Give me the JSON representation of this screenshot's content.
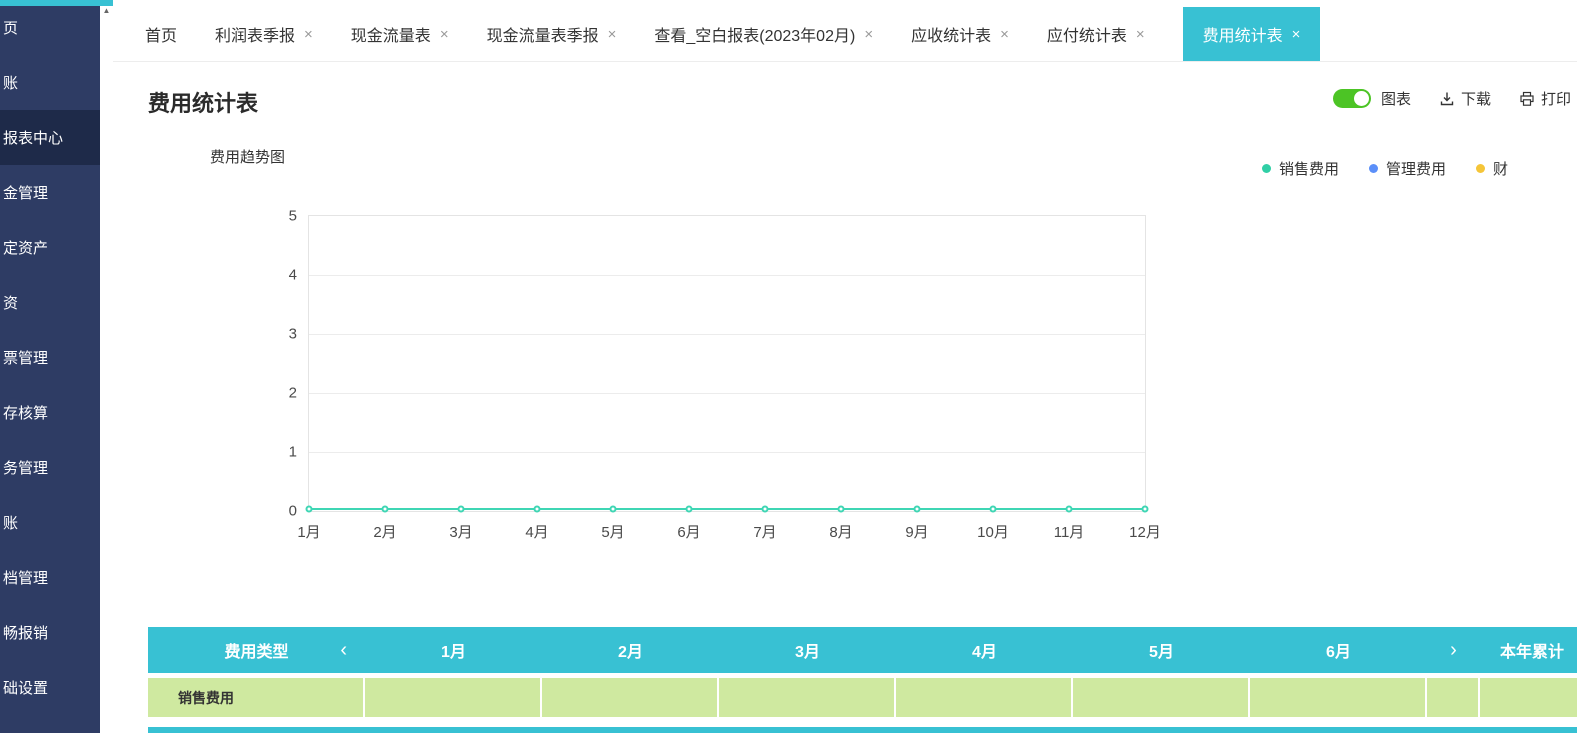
{
  "colors": {
    "accent_cyan": "#38c1d3",
    "sidebar_bg": "#2e3c64",
    "sidebar_active_bg": "#1e2a49",
    "row_green": "#cfe9a0",
    "toggle_on_green": "#4cc425",
    "series_teal": "#3fd6b4"
  },
  "ui": {
    "close_glyph": "×",
    "scroll_up_glyph": "▲"
  },
  "sidebar": {
    "items": [
      "页",
      "账",
      "报表中心",
      "金管理",
      "定资产",
      "资",
      "票管理",
      "存核算",
      "务管理",
      "账",
      "档管理",
      "畅报销",
      "础设置"
    ],
    "active_index": 2
  },
  "tabs": [
    {
      "label": "首页",
      "closable": false,
      "active": false
    },
    {
      "label": "利润表季报",
      "closable": true,
      "active": false
    },
    {
      "label": "现金流量表",
      "closable": true,
      "active": false
    },
    {
      "label": "现金流量表季报",
      "closable": true,
      "active": false
    },
    {
      "label": "查看_空白报表(2023年02月)",
      "closable": true,
      "active": false
    },
    {
      "label": "应收统计表",
      "closable": true,
      "active": false
    },
    {
      "label": "应付统计表",
      "closable": true,
      "active": false
    },
    {
      "label": "费用统计表",
      "closable": true,
      "active": true
    }
  ],
  "page": {
    "title": "费用统计表"
  },
  "toolbar": {
    "chart_toggle_label": "图表",
    "chart_toggle_state": "on",
    "download_label": "下载",
    "print_label": "打印"
  },
  "chart": {
    "title": "费用趋势图",
    "legend": [
      {
        "label": "销售费用",
        "color": "#30cfa6"
      },
      {
        "label": "管理费用",
        "color": "#5b8ff9"
      },
      {
        "label": "财",
        "color": "#f5c538"
      }
    ],
    "y_ticks": [
      "5",
      "4",
      "3",
      "2",
      "1",
      "0"
    ]
  },
  "chart_data": {
    "type": "line",
    "title": "费用趋势图",
    "x": [
      "1月",
      "2月",
      "3月",
      "4月",
      "5月",
      "6月",
      "7月",
      "8月",
      "9月",
      "10月",
      "11月",
      "12月"
    ],
    "series": [
      {
        "name": "销售费用",
        "color": "#3fd6b4",
        "values": [
          0,
          0,
          0,
          0,
          0,
          0,
          0,
          0,
          0,
          0,
          0,
          0
        ]
      }
    ],
    "ylim": [
      0,
      5
    ],
    "grid": true,
    "legend_position": "top-right"
  },
  "table": {
    "headers": [
      "费用类型",
      "1月",
      "2月",
      "3月",
      "4月",
      "5月",
      "6月",
      "本年累计"
    ],
    "prev_glyph": "‹",
    "next_glyph": "›",
    "rows": [
      {
        "label": "销售费用",
        "values": [
          "",
          "",
          "",
          "",
          "",
          "",
          ""
        ]
      }
    ]
  }
}
